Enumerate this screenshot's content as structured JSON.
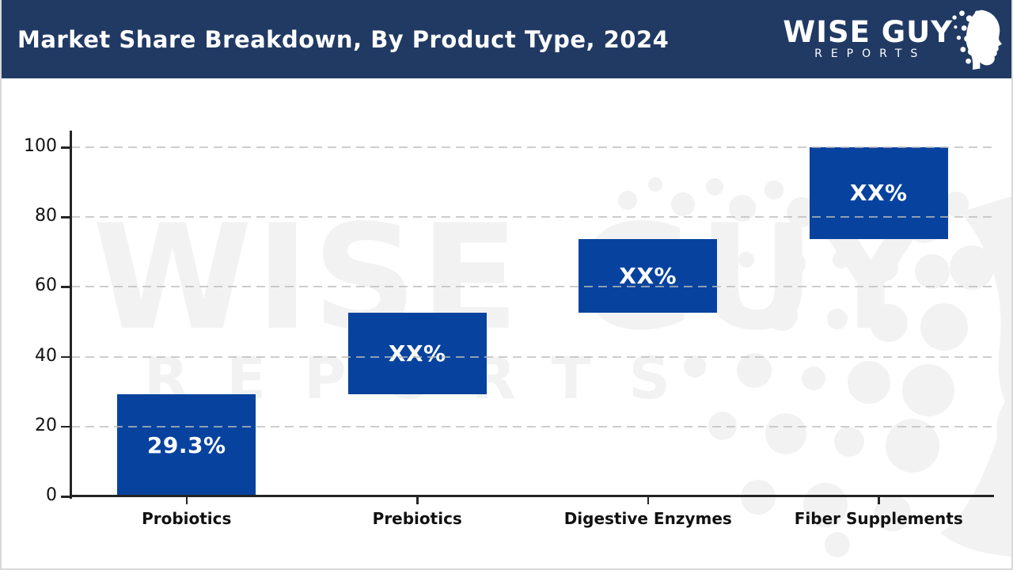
{
  "header": {
    "title": "Market Share Breakdown, By Product Type, 2024",
    "logo_line1": "WISE GUY",
    "logo_line2": "REPORTS"
  },
  "watermark": {
    "line1": "WISE GUY",
    "line2": "REPORTS"
  },
  "colors": {
    "header_bg": "#213a64",
    "bar": "#07439e",
    "axis": "#242424",
    "grid": "#cccccc",
    "bar_label": "#ffffff",
    "watermark": "#f2f2f2"
  },
  "chart_data": {
    "type": "bar",
    "variant": "waterfall",
    "title": "Market Share Breakdown, By Product Type, 2024",
    "xlabel": "",
    "ylabel": "",
    "categories": [
      "Probiotics",
      "Prebiotics",
      "Digestive Enzymes",
      "Fiber Supplements"
    ],
    "segments": [
      {
        "category": "Probiotics",
        "start": 0,
        "end": 29.3,
        "label": "29.3%"
      },
      {
        "category": "Prebiotics",
        "start": 29.3,
        "end": 52.6,
        "label": "XX%"
      },
      {
        "category": "Digestive Enzymes",
        "start": 52.6,
        "end": 73.7,
        "label": "XX%"
      },
      {
        "category": "Fiber Supplements",
        "start": 73.7,
        "end": 100,
        "label": "XX%"
      }
    ],
    "ylim": [
      0,
      100
    ],
    "yticks": [
      0,
      20,
      40,
      60,
      80,
      100
    ],
    "grid": "horizontal-dashed",
    "legend": "none",
    "bar_color": "#07439e"
  }
}
